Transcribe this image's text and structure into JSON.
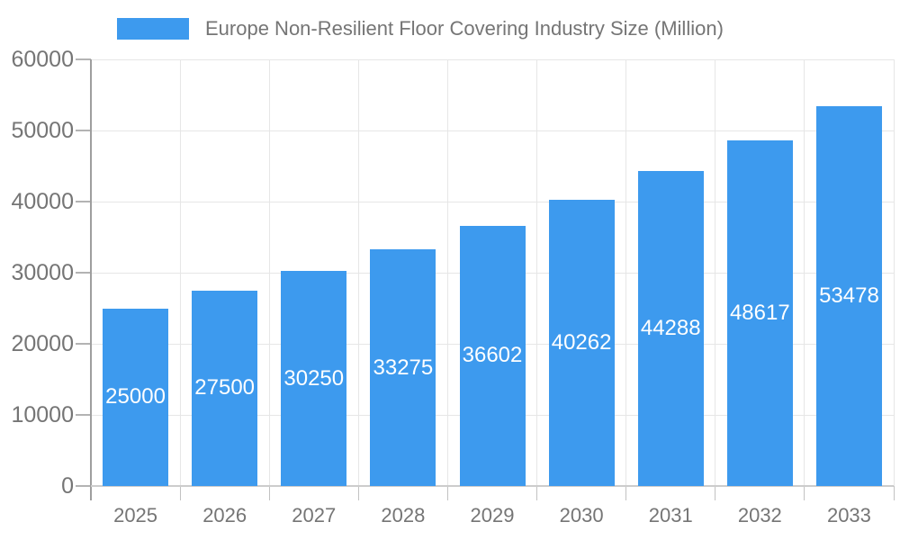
{
  "legend": {
    "label": "Europe Non-Resilient Floor Covering Industry Size (Million)"
  },
  "chart_data": {
    "type": "bar",
    "title": "Europe Non-Resilient Floor Covering Industry Size (Million)",
    "categories": [
      "2025",
      "2026",
      "2027",
      "2028",
      "2029",
      "2030",
      "2031",
      "2032",
      "2033"
    ],
    "values": [
      25000,
      27500,
      30250,
      33275,
      36602,
      40262,
      44288,
      48617,
      53478
    ],
    "bar_labels": [
      "25000",
      "27500",
      "30250",
      "33275",
      "36602",
      "40262",
      "44288",
      "48617",
      "53478"
    ],
    "xlabel": "",
    "ylabel": "",
    "ylim": [
      0,
      60000
    ],
    "yticks": [
      0,
      10000,
      20000,
      30000,
      40000,
      50000,
      60000
    ],
    "grid": true,
    "legend_position": "top-left",
    "colors": {
      "bar": "#3D9AEE",
      "bar_label_text": "#FFFFFF",
      "axis_text": "#757575",
      "gridline": "#E6E6E6",
      "axis_line": "#9E9E9E",
      "baseline": "#CCCCCC"
    }
  }
}
